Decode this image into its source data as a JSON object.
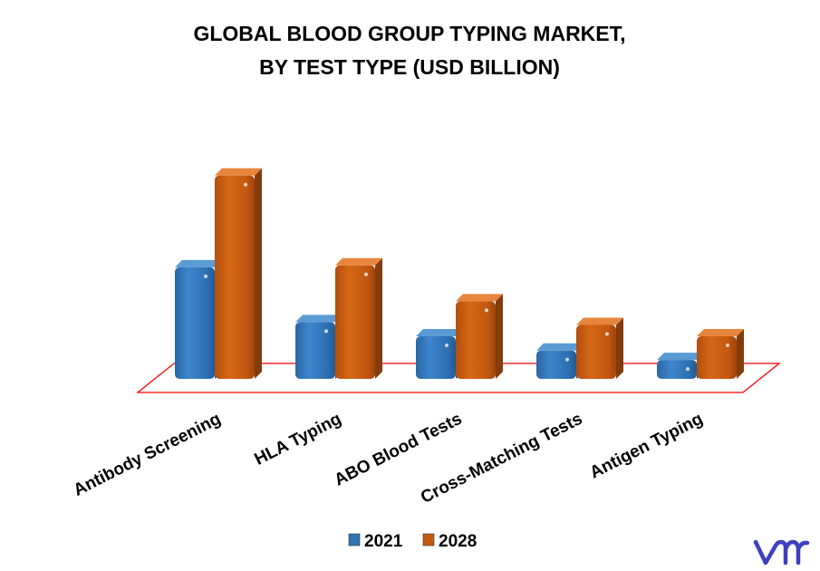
{
  "chart_data": {
    "type": "bar",
    "title": "GLOBAL BLOOD GROUP TYPING MARKET, BY TEST TYPE (USD BILLION)",
    "title_lines": [
      "GLOBAL BLOOD GROUP TYPING MARKET,",
      "BY TEST TYPE (USD BILLION)"
    ],
    "categories": [
      "Antibody Screening",
      "HLA Typing",
      "ABO Blood Tests",
      "Cross-Matching Tests",
      "Antigen Typing"
    ],
    "series": [
      {
        "name": "2021",
        "values": [
          1.18,
          0.6,
          0.45,
          0.3,
          0.2
        ],
        "color": "#2e75b6"
      },
      {
        "name": "2028",
        "values": [
          2.15,
          1.2,
          0.82,
          0.57,
          0.45
        ],
        "color": "#c55a11"
      }
    ],
    "ylim": [
      0,
      2.3
    ],
    "xlabel": "",
    "ylabel": "",
    "grid": false,
    "three_d": true,
    "floor_outline_color": "#ff0000",
    "legend_position": "bottom"
  },
  "logo": {
    "name": "vmr-logo",
    "text": "vmr",
    "color": "#3f3fbf"
  }
}
